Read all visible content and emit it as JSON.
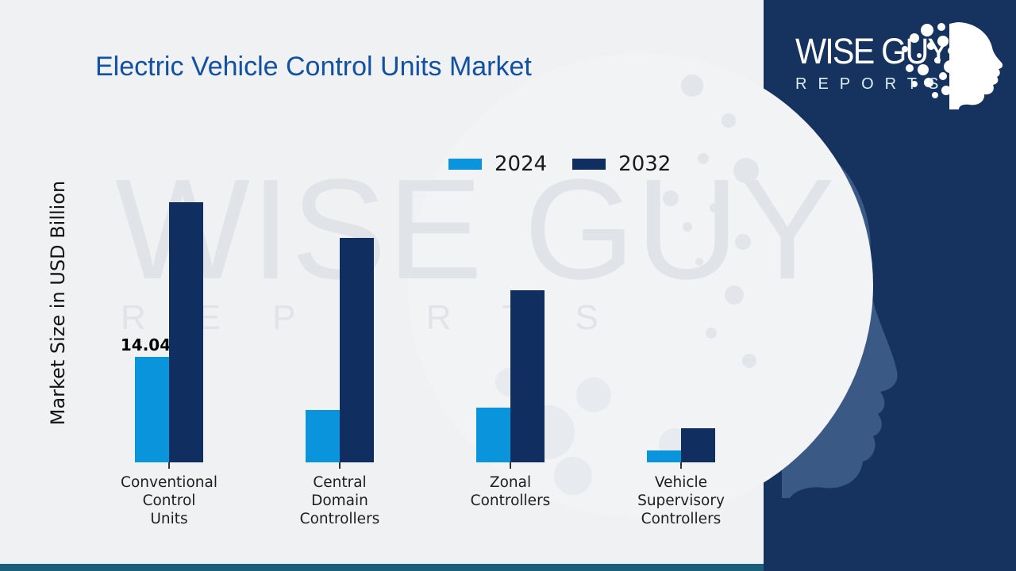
{
  "brand": {
    "name": "WISE GUY",
    "subname": "REPORTS"
  },
  "watermark": {
    "top": "WISE GUY",
    "bottom": "REPORTS"
  },
  "chart_data": {
    "type": "bar",
    "title": "Electric Vehicle Control Units Market",
    "ylabel": "Market Size in USD Billion",
    "xlabel": "",
    "categories": [
      "Conventional Control Units",
      "Central Domain Controllers",
      "Zonal Controllers",
      "Vehicle Supervisory Controllers"
    ],
    "category_display_lines": [
      [
        "Conventional",
        "Control",
        "Units"
      ],
      [
        "Central",
        "Domain",
        "Controllers"
      ],
      [
        "Zonal",
        "Controllers"
      ],
      [
        "Vehicle",
        "Supervisory",
        "Controllers"
      ]
    ],
    "series": [
      {
        "name": "2024",
        "color": "#0994dc",
        "values": [
          14.04,
          7.0,
          7.3,
          1.6
        ],
        "data_labels": [
          "14.04",
          "",
          "",
          ""
        ]
      },
      {
        "name": "2032",
        "color": "#102f60",
        "values": [
          34.7,
          29.9,
          22.9,
          4.5
        ],
        "data_labels": [
          "",
          "",
          "",
          ""
        ]
      }
    ],
    "ylim": [
      0,
      37.5
    ],
    "grid": false,
    "legend_position": "top-center"
  },
  "colors": {
    "background": "#f0f1f2",
    "title_blue": "#1250a4",
    "series_2024_blue": "#0994dc",
    "series_2032_navy": "#102f60",
    "brand_panel_navy": "#16335f",
    "face_silhouette": "#3a5a85",
    "footer_teal": "#1a5f7b",
    "watermark_gray": "#e0e3e8"
  }
}
